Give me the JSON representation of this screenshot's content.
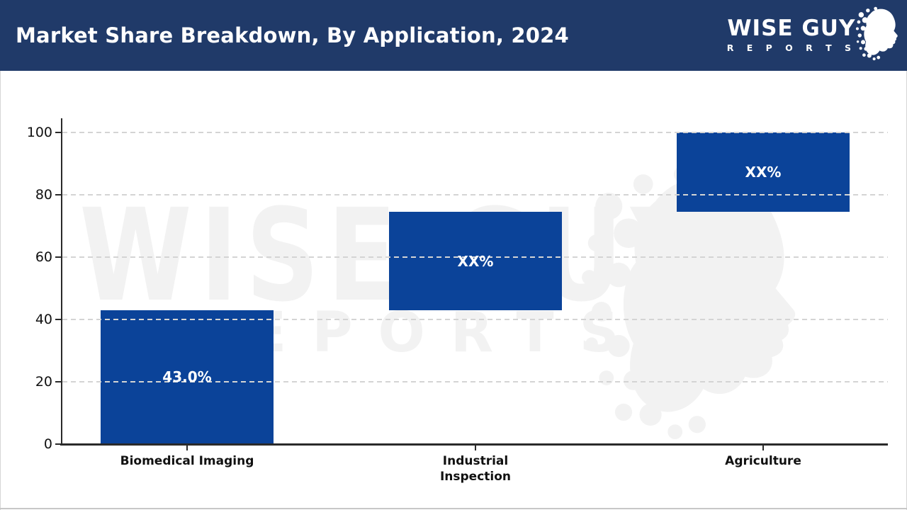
{
  "header": {
    "title": "Market Share Breakdown, By Application, 2024",
    "logo": {
      "primary": "WISE GUY",
      "secondary": "R E P O R T S"
    }
  },
  "watermark": {
    "primary": "WISE GUY",
    "secondary": "REPORTS"
  },
  "colors": {
    "header_bg": "#203a69",
    "bar_fill": "#0b4399",
    "bar_label_text": "#ffffff",
    "gridline": "#d4d4d4",
    "axis": "#2a2a2a",
    "tick_text": "#111111",
    "watermark": "#f2f2f2"
  },
  "chart_data": {
    "type": "bar",
    "subtype": "waterfall",
    "title": "Market Share Breakdown, By Application, 2024",
    "categories": [
      "Biomedical Imaging",
      "Industrial\nInspection",
      "Agriculture"
    ],
    "series": [
      {
        "name": "Market Share (%)",
        "segments": [
          {
            "category": "Biomedical Imaging",
            "start": 0,
            "end": 43,
            "label": "43.0%"
          },
          {
            "category": "Industrial Inspection",
            "start": 43,
            "end": 74.5,
            "label": "XX%"
          },
          {
            "category": "Agriculture",
            "start": 74.5,
            "end": 100,
            "label": "XX%"
          }
        ]
      }
    ],
    "xlabel": "",
    "ylabel": "",
    "ylim": [
      0,
      100
    ],
    "yticks": [
      0,
      20,
      40,
      60,
      80,
      100
    ],
    "grid": "dashed-horizontal",
    "legend": "none"
  }
}
